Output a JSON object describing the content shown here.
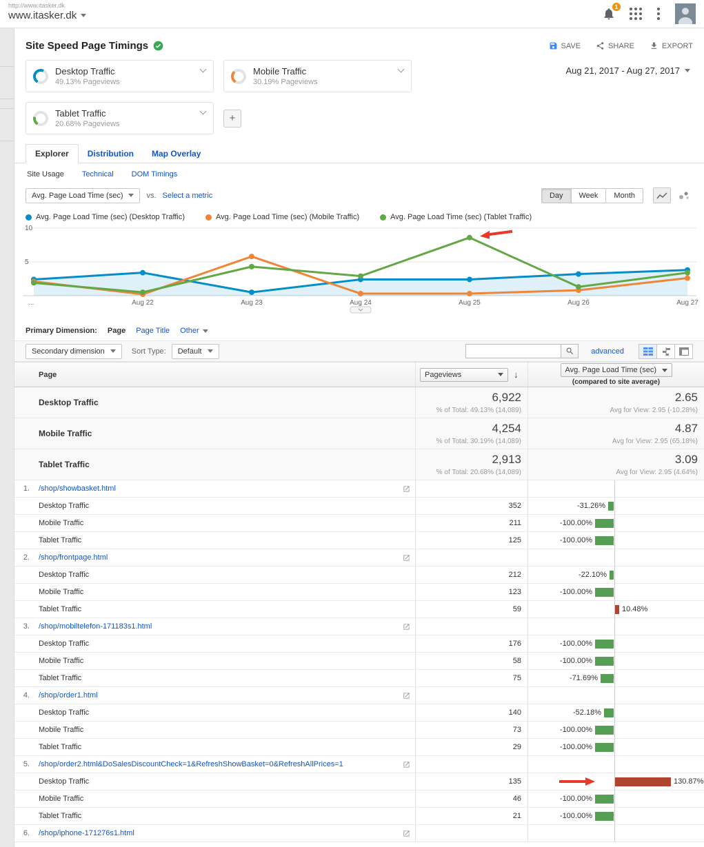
{
  "header": {
    "url": "http://www.itasker.dk",
    "account": "www.itasker.dk",
    "notification_badge": "1"
  },
  "report": {
    "title": "Site Speed Page Timings",
    "save": "SAVE",
    "share": "SHARE",
    "export": "EXPORT",
    "date_range": "Aug 21, 2017 - Aug 27, 2017"
  },
  "segments": [
    {
      "name": "Desktop Traffic",
      "detail": "49.13% Pageviews",
      "percent": 49.13,
      "color": "#058dc7"
    },
    {
      "name": "Mobile Traffic",
      "detail": "30.19% Pageviews",
      "percent": 30.19,
      "color": "#ef8536"
    },
    {
      "name": "Tablet Traffic",
      "detail": "20.68% Pageviews",
      "percent": 20.68,
      "color": "#63a846"
    }
  ],
  "add_segment_label": "+",
  "tabs": [
    {
      "label": "Explorer",
      "active": true
    },
    {
      "label": "Distribution",
      "active": false
    },
    {
      "label": "Map Overlay",
      "active": false
    }
  ],
  "subtabs": [
    {
      "label": "Site Usage",
      "active": true
    },
    {
      "label": "Technical",
      "active": false
    },
    {
      "label": "DOM Timings",
      "active": false
    }
  ],
  "metric_bar": {
    "metric_dropdown": "Avg. Page Load Time (sec)",
    "vs_label": "vs.",
    "select_metric": "Select a metric",
    "granularity": [
      {
        "label": "Day",
        "active": true
      },
      {
        "label": "Week",
        "active": false
      },
      {
        "label": "Month",
        "active": false
      }
    ]
  },
  "chart_data": {
    "type": "line",
    "x": [
      "...",
      "Aug 22",
      "Aug 23",
      "Aug 24",
      "Aug 25",
      "Aug 26",
      "Aug 27"
    ],
    "ylim": [
      0,
      10
    ],
    "yticks": [
      5,
      10
    ],
    "series": [
      {
        "name": "Avg. Page Load Time (sec) (Desktop Traffic)",
        "color": "#058dc7",
        "area": true,
        "values": [
          2.4,
          3.4,
          0.5,
          2.4,
          2.4,
          3.2,
          3.8
        ]
      },
      {
        "name": "Avg. Page Load Time (sec) (Mobile Traffic)",
        "color": "#ef8536",
        "area": false,
        "values": [
          2.1,
          0.2,
          5.8,
          0.3,
          0.3,
          0.8,
          2.6
        ]
      },
      {
        "name": "Avg. Page Load Time (sec) (Tablet Traffic)",
        "color": "#63a846",
        "area": false,
        "values": [
          1.9,
          0.5,
          4.3,
          2.9,
          8.6,
          1.3,
          3.4
        ]
      }
    ],
    "annotation": {
      "type": "red-arrow",
      "series": "Tablet Traffic",
      "x": "Aug 25",
      "value": 8.6,
      "color": "#e8392a"
    }
  },
  "dimension_bar": {
    "label": "Primary Dimension:",
    "options": [
      {
        "label": "Page",
        "active": true,
        "caret": false
      },
      {
        "label": "Page Title",
        "active": false,
        "caret": false
      },
      {
        "label": "Other",
        "active": false,
        "caret": true
      }
    ]
  },
  "controls": {
    "secondary_dimension": "Secondary dimension",
    "sort_type_label": "Sort Type:",
    "sort_type_value": "Default",
    "search_placeholder": "",
    "advanced_label": "advanced"
  },
  "table": {
    "columns": {
      "page": "Page",
      "pageviews": "Pageviews",
      "metric": "Avg. Page Load Time (sec)",
      "metric_note": "(compared to site average)"
    },
    "colors": {
      "positive_bar": "#b0452f",
      "negative_bar": "#559e54"
    },
    "summary_rows": [
      {
        "label": "Desktop Traffic",
        "value": "6,922",
        "value_note": "% of Total: 49.13% (14,089)",
        "metric": "2.65",
        "metric_note": "Avg for View: 2.95 (-10.28%)"
      },
      {
        "label": "Mobile Traffic",
        "value": "4,254",
        "value_note": "% of Total: 30.19% (14,089)",
        "metric": "4.87",
        "metric_note": "Avg for View: 2.95 (65.18%)"
      },
      {
        "label": "Tablet Traffic",
        "value": "2,913",
        "value_note": "% of Total: 20.68% (14,089)",
        "metric": "3.09",
        "metric_note": "Avg for View: 2.95 (4.64%)"
      }
    ],
    "rows": [
      {
        "index": "1.",
        "page": "/shop/showbasket.html",
        "segments": [
          {
            "label": "Desktop Traffic",
            "pageviews": "352",
            "delta_label": "-31.26%",
            "delta": -31.26
          },
          {
            "label": "Mobile Traffic",
            "pageviews": "211",
            "delta_label": "-100.00%",
            "delta": -100
          },
          {
            "label": "Tablet Traffic",
            "pageviews": "125",
            "delta_label": "-100.00%",
            "delta": -100
          }
        ]
      },
      {
        "index": "2.",
        "page": "/shop/frontpage.html",
        "segments": [
          {
            "label": "Desktop Traffic",
            "pageviews": "212",
            "delta_label": "-22.10%",
            "delta": -22.1
          },
          {
            "label": "Mobile Traffic",
            "pageviews": "123",
            "delta_label": "-100.00%",
            "delta": -100
          },
          {
            "label": "Tablet Traffic",
            "pageviews": "59",
            "delta_label": "10.48%",
            "delta": 10.48
          }
        ]
      },
      {
        "index": "3.",
        "page": "/shop/mobiltelefon-171183s1.html",
        "segments": [
          {
            "label": "Desktop Traffic",
            "pageviews": "176",
            "delta_label": "-100.00%",
            "delta": -100
          },
          {
            "label": "Mobile Traffic",
            "pageviews": "58",
            "delta_label": "-100.00%",
            "delta": -100
          },
          {
            "label": "Tablet Traffic",
            "pageviews": "75",
            "delta_label": "-71.69%",
            "delta": -71.69
          }
        ]
      },
      {
        "index": "4.",
        "page": "/shop/order1.html",
        "segments": [
          {
            "label": "Desktop Traffic",
            "pageviews": "140",
            "delta_label": "-52.18%",
            "delta": -52.18
          },
          {
            "label": "Mobile Traffic",
            "pageviews": "73",
            "delta_label": "-100.00%",
            "delta": -100
          },
          {
            "label": "Tablet Traffic",
            "pageviews": "29",
            "delta_label": "-100.00%",
            "delta": -100
          }
        ]
      },
      {
        "index": "5.",
        "page": "/shop/order2.html&DoSalesDiscountCheck=1&RefreshShowBasket=0&RefreshAllPrices=1",
        "segments": [
          {
            "label": "Desktop Traffic",
            "pageviews": "135",
            "delta_label": "130.87%",
            "delta": 130.87,
            "arrow": true
          },
          {
            "label": "Mobile Traffic",
            "pageviews": "46",
            "delta_label": "-100.00%",
            "delta": -100
          },
          {
            "label": "Tablet Traffic",
            "pageviews": "21",
            "delta_label": "-100.00%",
            "delta": -100
          }
        ]
      },
      {
        "index": "6.",
        "page": "/shop/iphone-171276s1.html",
        "segments": []
      }
    ]
  }
}
